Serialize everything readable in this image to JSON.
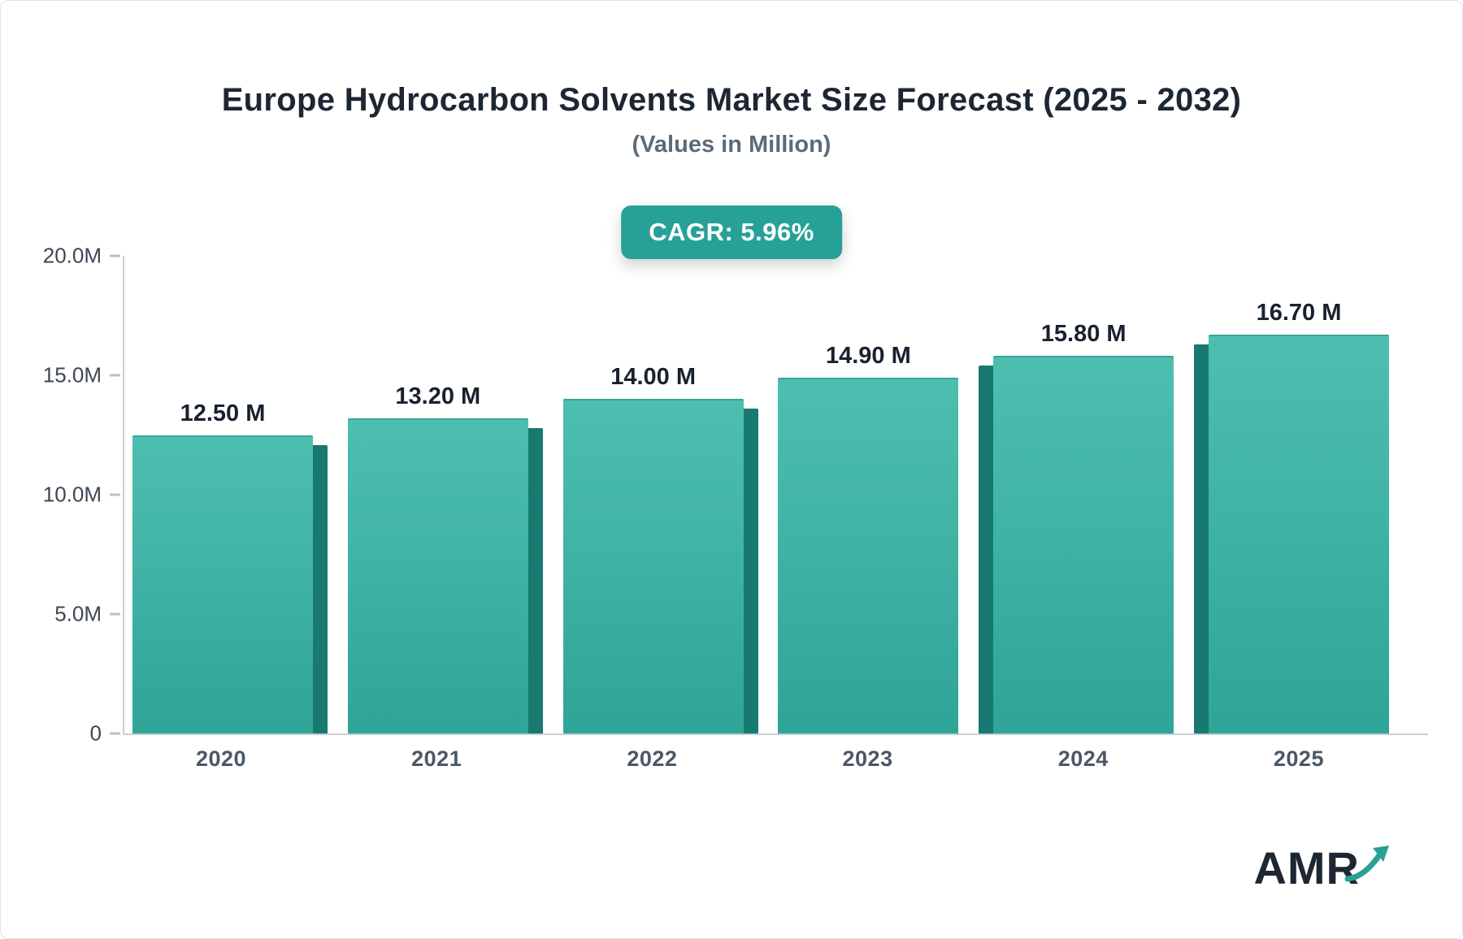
{
  "header": {
    "title": "Europe Hydrocarbon Solvents Market Size Forecast (2025 - 2032)",
    "subtitle": "(Values in Million)"
  },
  "badge": {
    "label": "CAGR: 5.96%"
  },
  "chart_data": {
    "type": "bar",
    "title": "Europe Hydrocarbon Solvents Market Size Forecast (2025 - 2032)",
    "subtitle": "(Values in Million)",
    "cagr_text": "CAGR: 5.96%",
    "categories": [
      "2020",
      "2021",
      "2022",
      "2023",
      "2024",
      "2025"
    ],
    "values": [
      12.5,
      13.2,
      14.0,
      14.9,
      15.8,
      16.7
    ],
    "value_labels": [
      "12.50 M",
      "13.20 M",
      "14.00 M",
      "14.90 M",
      "15.80 M",
      "16.70 M"
    ],
    "xlabel": "",
    "ylabel": "",
    "ylim": [
      0,
      20
    ],
    "y_ticks": [
      {
        "label": "20.0M",
        "value": 20
      },
      {
        "label": "15.0M",
        "value": 15
      },
      {
        "label": "10.0M",
        "value": 10
      },
      {
        "label": "5.0M",
        "value": 5
      },
      {
        "label": "0",
        "value": 0
      }
    ],
    "grid": false,
    "legend": false,
    "unit": "Million",
    "bar_color_top": "#4dbfb0",
    "bar_color_bottom": "#2fa597",
    "bar_shadow_color": "#17796f",
    "badge_color": "#27a198"
  },
  "logo": {
    "text": "AMR",
    "arrow_color": "#2aa193"
  }
}
